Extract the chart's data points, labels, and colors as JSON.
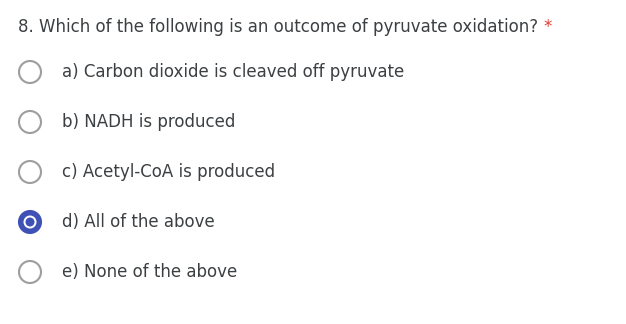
{
  "question": "8. Which of the following is an outcome of pyruvate oxidation? ",
  "asterisk": "*",
  "question_color": "#3c4043",
  "asterisk_color": "#e53935",
  "options": [
    "a) Carbon dioxide is cleaved off pyruvate",
    "b) NADH is produced",
    "c) Acetyl-CoA is produced",
    "d) All of the above",
    "e) None of the above"
  ],
  "selected_index": 3,
  "bg_color": "#ffffff",
  "text_color": "#3c4043",
  "circle_edge_color": "#9e9e9e",
  "selected_fill_color": "#3f51b5",
  "selected_edge_color": "#3f51b5",
  "question_fontsize": 12,
  "option_fontsize": 12
}
